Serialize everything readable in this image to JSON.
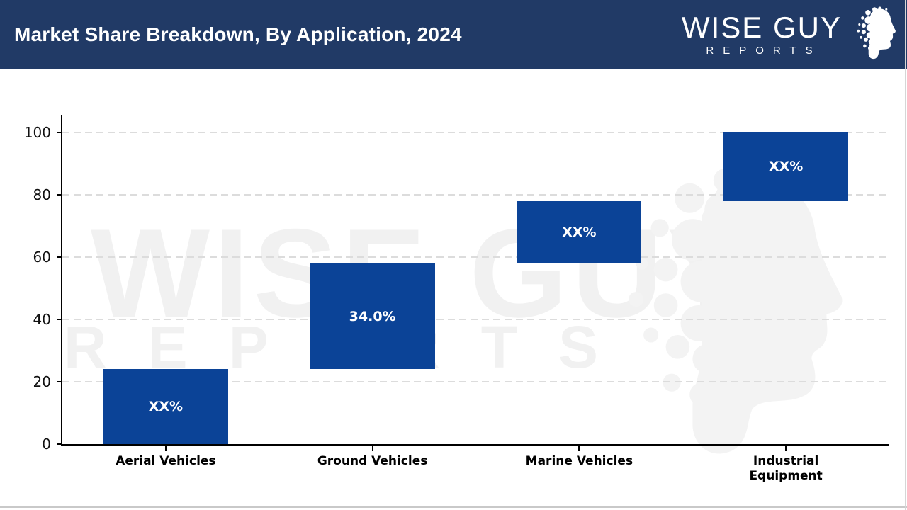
{
  "header": {
    "title": "Market Share Breakdown, By Application, 2024",
    "logo": {
      "line1": "WISE GUY",
      "line2": "REPORTS"
    }
  },
  "watermark": {
    "line1": "WISE GUY",
    "line2": "REPORTS"
  },
  "colors": {
    "header_bg": "#213a66",
    "bar": "#0b4397",
    "grid": "#dcdcdc",
    "axis": "#000000",
    "watermark": "#f1f1f1",
    "bar_label_text": "#ffffff",
    "tick_text": "#111111"
  },
  "chart_data": {
    "type": "bar",
    "subtype": "waterfall-floating-bars",
    "title": "",
    "xlabel": "",
    "ylabel": "",
    "legend": "none",
    "grid": "dashed-horizontal",
    "ylim": [
      0,
      100
    ],
    "yticks": [
      0,
      20,
      40,
      60,
      80,
      100
    ],
    "categories": [
      "Aerial Vehicles",
      "Ground Vehicles",
      "Marine Vehicles",
      "Industrial Equipment"
    ],
    "segments": [
      {
        "category": "Aerial Vehicles",
        "start": 0,
        "end": 24,
        "value": 24,
        "label": "XX%"
      },
      {
        "category": "Ground Vehicles",
        "start": 24,
        "end": 58,
        "value": 34,
        "label": "34.0%"
      },
      {
        "category": "Marine Vehicles",
        "start": 58,
        "end": 78,
        "value": 20,
        "label": "XX%"
      },
      {
        "category": "Industrial Equipment",
        "start": 78,
        "end": 100,
        "value": 22,
        "label": "XX%"
      }
    ]
  }
}
